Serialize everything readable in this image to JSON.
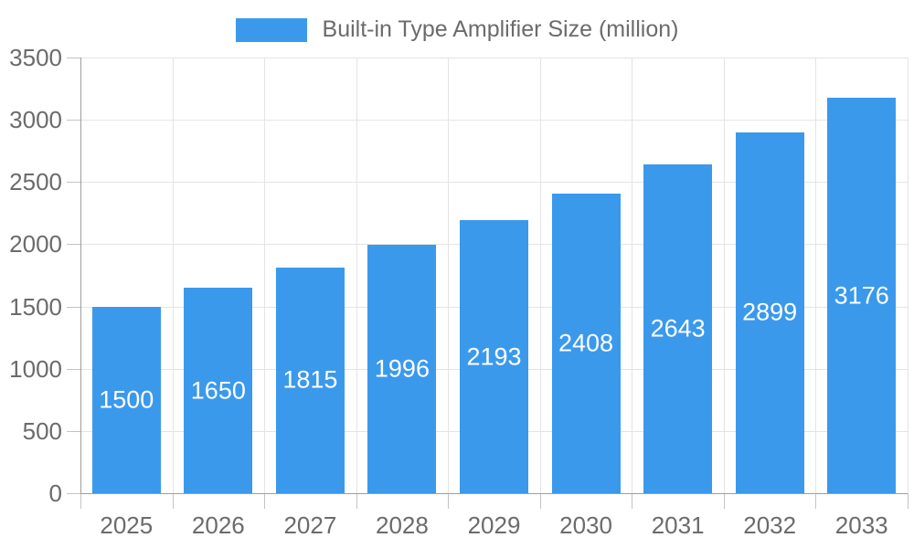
{
  "legend": {
    "label": "Built-in Type Amplifier Size (million)"
  },
  "chart_data": {
    "type": "bar",
    "title": "Built-in Type Amplifier Size (million)",
    "categories": [
      "2025",
      "2026",
      "2027",
      "2028",
      "2029",
      "2030",
      "2031",
      "2032",
      "2033"
    ],
    "values": [
      1500,
      1650,
      1815,
      1996,
      2193,
      2408,
      2643,
      2899,
      3176
    ],
    "xlabel": "",
    "ylabel": "",
    "ylim": [
      0,
      3500
    ],
    "yticks": [
      0,
      500,
      1000,
      1500,
      2000,
      2500,
      3000,
      3500
    ],
    "grid": true,
    "legend_position": "top",
    "value_labels": "inside-center",
    "colors": {
      "bar": "#3B99EC",
      "grid_line": "#e4e4e4",
      "axis_line": "#9e9e9e",
      "tick_mark": "#c4c4c4",
      "axis_text": "#6b6b6b",
      "value_label_text": "#ffffff",
      "background": "#ffffff"
    }
  }
}
